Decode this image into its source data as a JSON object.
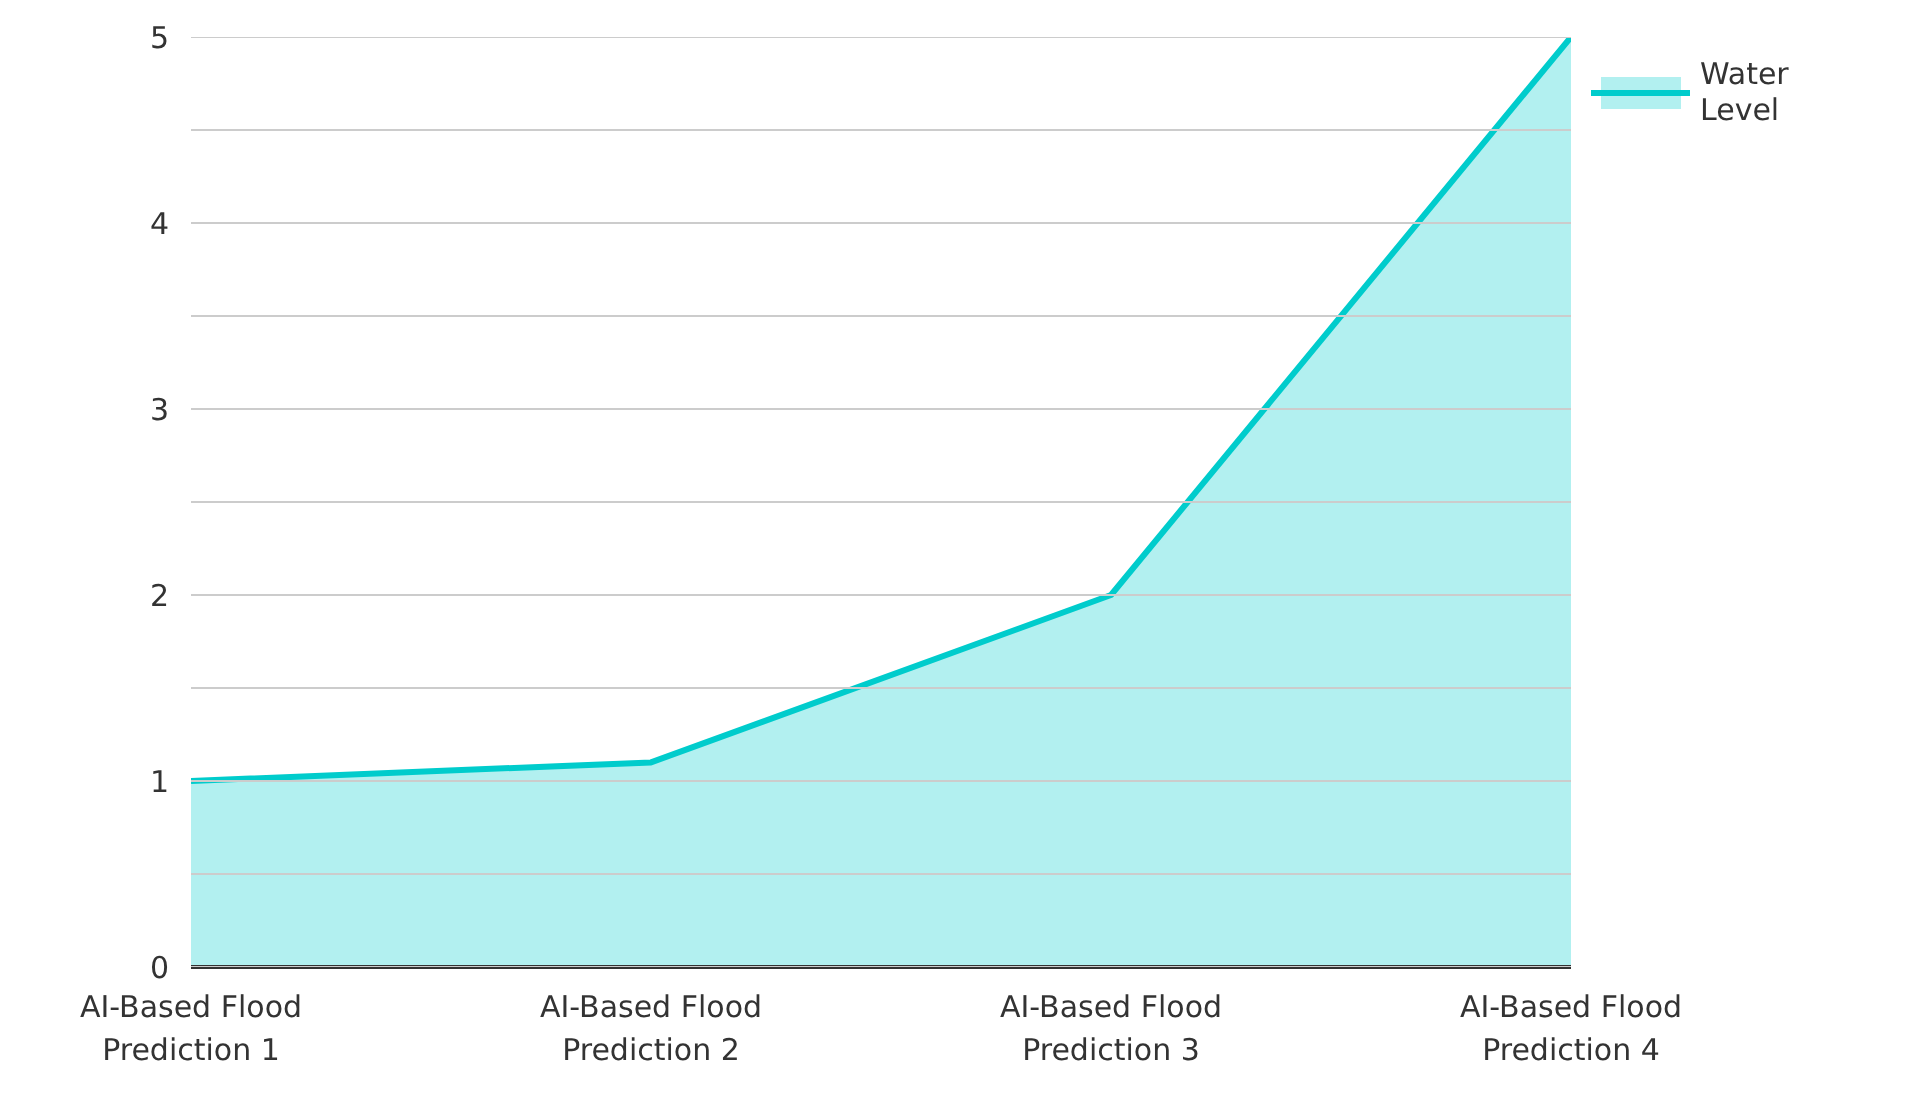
{
  "chart_data": {
    "type": "area",
    "categories": [
      "AI-Based Flood Prediction 1",
      "AI-Based Flood Prediction 2",
      "AI-Based Flood Prediction 3",
      "AI-Based Flood Prediction 4"
    ],
    "series": [
      {
        "name": "Water Level",
        "color": "#00cccc",
        "values": [
          1,
          1.1,
          2,
          5
        ]
      }
    ],
    "ylim": [
      0,
      5
    ],
    "yticks": [
      0,
      {
        "value": 0.5,
        "label": null
      },
      1,
      {
        "value": 1.5,
        "label": null
      },
      2,
      {
        "value": 2.5,
        "label": null
      },
      3,
      {
        "value": 3.5,
        "label": null
      },
      4,
      {
        "value": 4.5,
        "label": null
      },
      5
    ],
    "grid": "y",
    "legend": "top right",
    "marker": "none",
    "line_style": "solid"
  }
}
